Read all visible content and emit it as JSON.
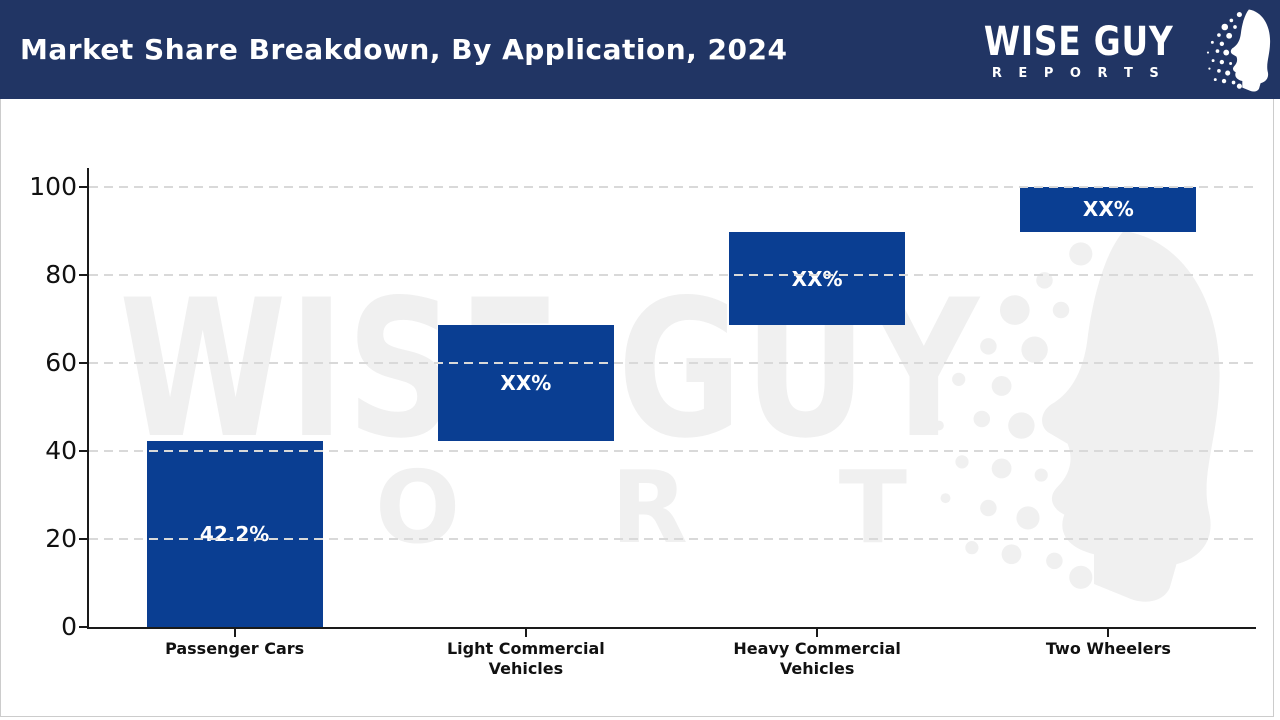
{
  "header": {
    "title": "Market Share Breakdown, By Application, 2024",
    "logo": {
      "line1": "WISE GUY",
      "line2": "R E P O R T S"
    }
  },
  "watermark": {
    "line1": "WISE GUY",
    "line2": "P O R T S"
  },
  "colors": {
    "header_bg": "#213564",
    "bar": "#0a3e92",
    "grid": "#d9d9d9",
    "watermark": "#f0f0f0"
  },
  "chart_data": {
    "type": "bar",
    "subtype": "waterfall",
    "title": "Market Share Breakdown, By Application, 2024",
    "categories": [
      "Passenger Cars",
      "Light Commercial Vehicles",
      "Heavy Commercial Vehicles",
      "Two Wheelers"
    ],
    "bars": [
      {
        "category": "Passenger Cars",
        "start": 0,
        "end": 42.2,
        "label": "42.2%"
      },
      {
        "category": "Light Commercial Vehicles",
        "start": 42.2,
        "end": 68.6,
        "label": "XX%"
      },
      {
        "category": "Heavy Commercial Vehicles",
        "start": 68.6,
        "end": 89.8,
        "label": "XX%"
      },
      {
        "category": "Two Wheelers",
        "start": 89.8,
        "end": 100,
        "label": "XX%"
      }
    ],
    "xlabel": "",
    "ylabel": "",
    "ylim": [
      0,
      100
    ],
    "yticks": [
      0,
      20,
      40,
      60,
      80,
      100
    ],
    "grid": "dashed-horizontal",
    "legend": "none",
    "bar_color": "#0a3e92"
  }
}
